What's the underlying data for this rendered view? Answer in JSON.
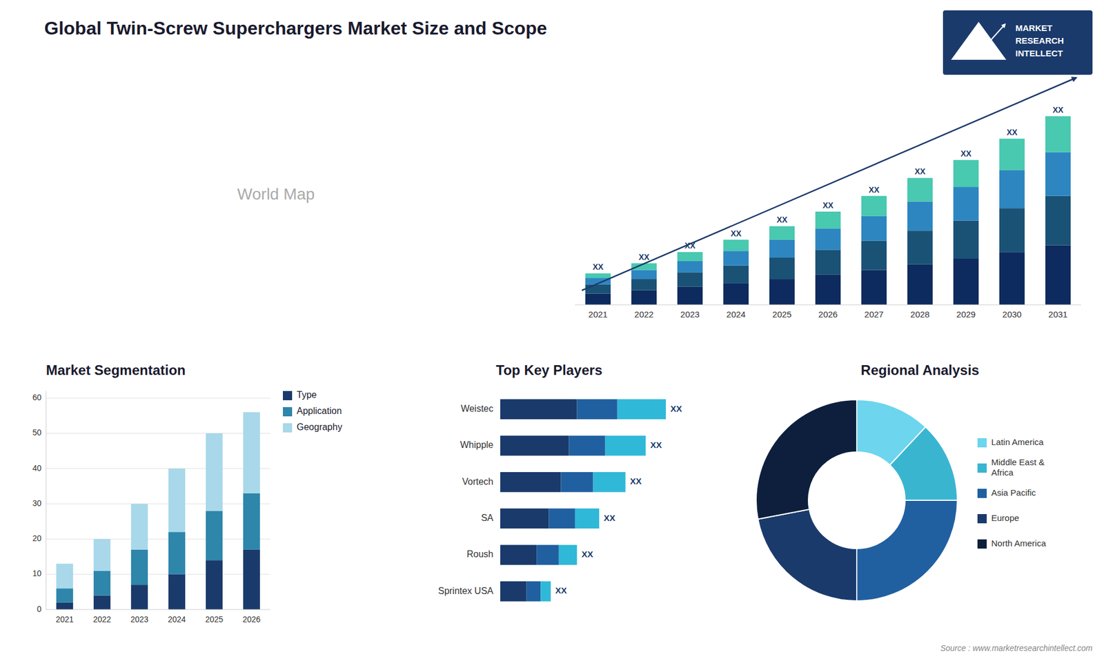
{
  "title": "Global  Twin-Screw Superchargers Market Size and Scope",
  "annotations": [
    "MARKET",
    "RESEARCH",
    "INTELLECT",
    "Source : www.marketresearchintellect.com"
  ],
  "chart_data": [
    {
      "type": "map",
      "annotations": [
        "World Map"
      ]
    },
    {
      "type": "bar",
      "stacked": true,
      "grid": false,
      "tick_labels": "x",
      "categories": [
        "2021",
        "2022",
        "2023",
        "2024",
        "2025",
        "2026",
        "2027",
        "2028",
        "2029",
        "2030",
        "2031"
      ],
      "series": [
        {
          "color": "#0d2b5e",
          "values": [
            1.0,
            1.3,
            1.6,
            1.9,
            2.3,
            2.7,
            3.1,
            3.6,
            4.1,
            4.7,
            5.3
          ]
        },
        {
          "color": "#1a5276",
          "values": [
            0.8,
            1.0,
            1.3,
            1.6,
            1.9,
            2.2,
            2.6,
            3.0,
            3.4,
            3.9,
            4.4
          ]
        },
        {
          "color": "#2e86c1",
          "values": [
            0.6,
            0.8,
            1.0,
            1.3,
            1.6,
            1.9,
            2.2,
            2.6,
            3.0,
            3.4,
            3.9
          ]
        },
        {
          "color": "#48c9b0",
          "values": [
            0.4,
            0.6,
            0.8,
            1.0,
            1.2,
            1.5,
            1.8,
            2.1,
            2.4,
            2.8,
            3.2
          ]
        }
      ],
      "ylim": [
        0,
        20.496
      ],
      "annotations": [
        "XX",
        "XX",
        "XX",
        "XX",
        "XX",
        "XX",
        "XX",
        "XX",
        "XX",
        "XX",
        "XX"
      ]
    },
    {
      "type": "bar",
      "stacked": true,
      "grid": true,
      "legend": "right",
      "title": "Market Segmentation",
      "categories": [
        "2021",
        "2022",
        "2023",
        "2024",
        "2025",
        "2026"
      ],
      "series": [
        {
          "name": "Type",
          "color": "#1a3a6b",
          "values": [
            2,
            4,
            7,
            10,
            14,
            17
          ]
        },
        {
          "name": "Application",
          "color": "#2e86ab",
          "values": [
            4,
            7,
            10,
            12,
            14,
            16
          ]
        },
        {
          "name": "Geography",
          "color": "#a8d8ea",
          "values": [
            7,
            9,
            13,
            18,
            22,
            23
          ]
        }
      ],
      "ylim": [
        0,
        62
      ],
      "yticks": [
        0,
        10,
        20,
        30,
        40,
        50,
        60
      ]
    },
    {
      "type": "bar",
      "stacked": true,
      "orientation": "horizontal",
      "grid": false,
      "tick_labels": "y",
      "title": "Top Key Players",
      "categories": [
        "Weistec",
        "Whipple",
        "Vortech",
        "SA",
        "Roush",
        "Sprintex USA"
      ],
      "series": [
        {
          "color": "#1a3a6b",
          "values": [
            38,
            34,
            30,
            24,
            18,
            13
          ]
        },
        {
          "color": "#2060a0",
          "values": [
            20,
            18,
            16,
            13,
            11,
            7
          ]
        },
        {
          "color": "#30b8d8",
          "values": [
            24,
            20,
            16,
            12,
            9,
            5
          ]
        }
      ],
      "xlim": [
        0,
        102.5
      ],
      "annotations": [
        "XX",
        "XX",
        "XX",
        "XX",
        "XX",
        "XX"
      ]
    },
    {
      "type": "donut",
      "legend": "right",
      "title": "Regional Analysis",
      "categories": [
        "Latin America",
        "Middle East &\nAfrica",
        "Asia Pacific",
        "Europe",
        "North America"
      ],
      "values": [
        12,
        13,
        25,
        22,
        28
      ],
      "colors": [
        "#6dd5ed",
        "#3ab5d0",
        "#2060a0",
        "#1a3a6b",
        "#0d1f3c"
      ]
    }
  ]
}
